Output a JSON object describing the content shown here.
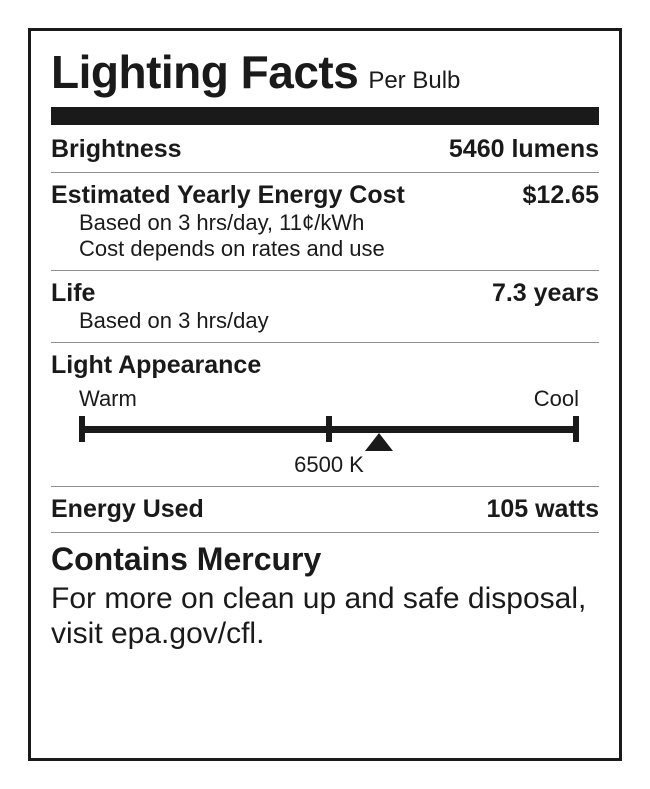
{
  "title": "Lighting Facts",
  "title_sub": "Per Bulb",
  "brightness": {
    "label": "Brightness",
    "value": "5460 lumens"
  },
  "cost": {
    "label": "Estimated Yearly Energy Cost",
    "value": "$12.65",
    "sub1": "Based on 3 hrs/day, 11¢/kWh",
    "sub2": "Cost depends on rates and use"
  },
  "life": {
    "label": "Life",
    "value": "7.3 years",
    "sub": "Based on 3 hrs/day"
  },
  "appearance": {
    "label": "Light Appearance",
    "warm": "Warm",
    "cool": "Cool",
    "value_label": "6500 K",
    "pointer_percent": 60
  },
  "energy": {
    "label": "Energy Used",
    "value": "105 watts"
  },
  "mercury": {
    "title": "Contains Mercury",
    "body": "For more on clean up and safe disposal, visit epa.gov/cfl."
  },
  "colors": {
    "fg": "#1a1a1a",
    "bg": "#ffffff",
    "rule": "#8f8f8f"
  }
}
